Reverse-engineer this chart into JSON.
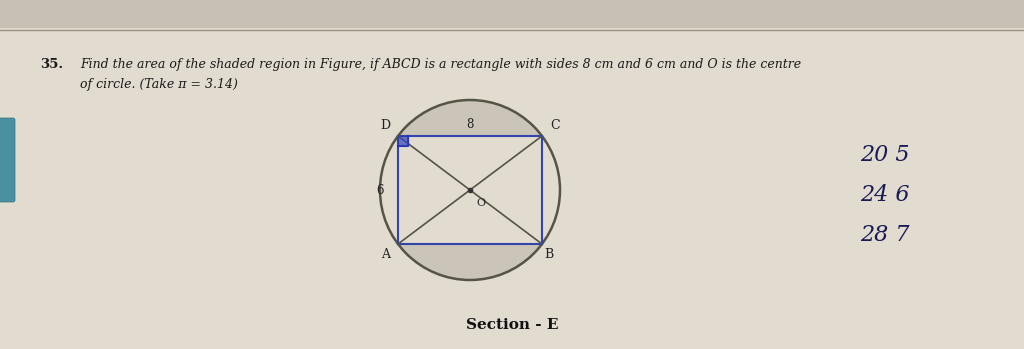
{
  "question_number": "35.",
  "question_text": "Find the area of the shaded region in Figure, if ABCD is a rectangle with sides 8 cm and 6 cm and O is the centre",
  "question_text2": "of circle. (Take π = 3.14)",
  "bg_color": "#d6cfc5",
  "paper_color": "#e2dbd0",
  "label_A": "A",
  "label_B": "B",
  "label_C": "C",
  "label_D": "D",
  "label_O": "O",
  "label_8": "8",
  "label_6": "6",
  "hw1": "20 5",
  "hw2": "24 6",
  "hw3": "28 7",
  "section_text": "Section - E"
}
